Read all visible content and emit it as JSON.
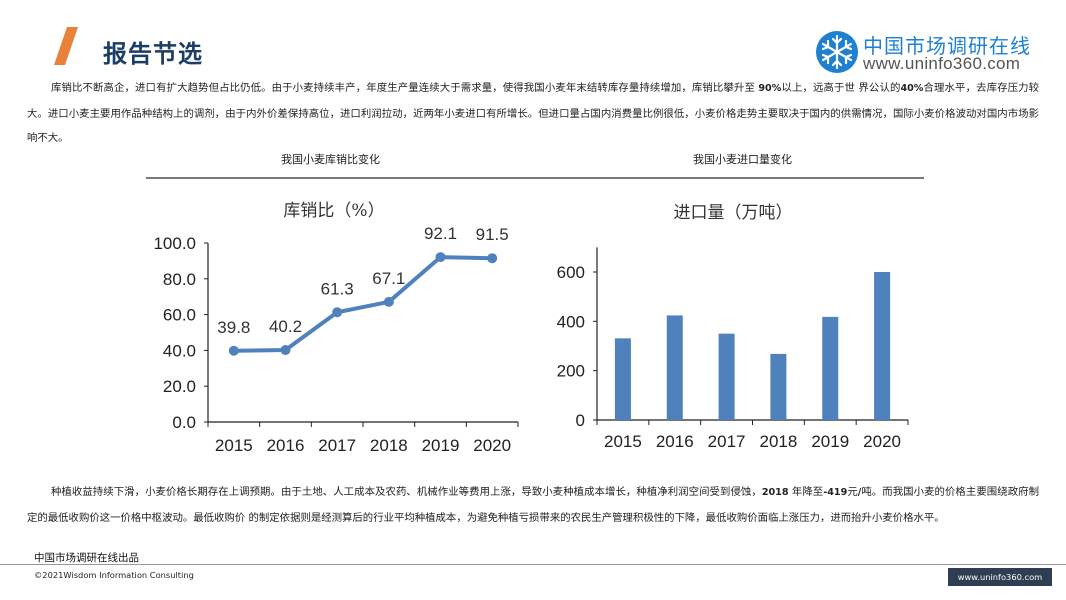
{
  "header": {
    "title": "报告节选",
    "accent_color": "#e8823a",
    "title_color": "#1c3d66"
  },
  "logo": {
    "icon": "snowflake-logo-icon",
    "name": "中国市场调研在线",
    "url": "www.uninfo360.com",
    "brand_color": "#1f7fd0"
  },
  "paragraph1": {
    "parts": [
      {
        "text": "库销比不断高企，进口有扩大趋势但占比仍低。由于小麦持续丰产，年度生产量连续大于需求量，使得我国小麦年末结转库存量持续增加，库销比攀升至 ",
        "bold": false
      },
      {
        "text": "90%",
        "bold": true
      },
      {
        "text": "以上，远高于世 界公认的",
        "bold": false
      },
      {
        "text": "40%",
        "bold": true
      },
      {
        "text": "合理水平，去库存压力较大。进口小麦主要用作品种结构上的调剂，由于内外价差保持高位，进口利润拉动，近两年小麦进口有所增长。但进口量占国内消费量比例很低，小麦价格走势主要取决于国内的供需情况，国际小麦价格波动对国内市场影响不大。",
        "bold": false
      }
    ]
  },
  "paragraph2": {
    "parts": [
      {
        "text": "种植收益持续下滑，小麦价格长期存在上调预期。由于土地、人工成本及农药、机械作业等费用上涨，导致小麦种植成本增长，种植净利润空间受到侵蚀，",
        "bold": false
      },
      {
        "text": "2018",
        "bold": true
      },
      {
        "text": " 年降至",
        "bold": false
      },
      {
        "text": "-419",
        "bold": true
      },
      {
        "text": "元",
        "bold": false
      },
      {
        "text": "/",
        "bold": true
      },
      {
        "text": "吨。而我国小麦的价格主要围绕政府制定的最低收购价这一价格中枢波动。最低收购价 的制定依据则是经测算后的行业平均种植成本，为避免种植亏损带来的农民生产管理积极性的下降，最低收购价面临上涨压力，进而抬升小麦价格水平。",
        "bold": false
      }
    ]
  },
  "chart_data": [
    {
      "type": "line",
      "caption": "我国小麦库销比变化",
      "title": "库销比（%）",
      "xlabel": "",
      "ylabel": "",
      "categories": [
        "2015",
        "2016",
        "2017",
        "2018",
        "2019",
        "2020"
      ],
      "values": [
        39.8,
        40.2,
        61.3,
        67.1,
        92.1,
        91.5
      ],
      "data_labels": [
        "39.8",
        "40.2",
        "61.3",
        "67.1",
        "92.1",
        "91.5"
      ],
      "yticks": [
        "0.0",
        "20.0",
        "40.0",
        "60.0",
        "80.0",
        "100.0"
      ],
      "ylim": [
        0,
        100
      ],
      "grid": false,
      "legend": "none",
      "color": "#4f81bd"
    },
    {
      "type": "bar",
      "caption": "我国小麦进口量变化",
      "title": "进口量（万吨）",
      "xlabel": "",
      "ylabel": "",
      "categories": [
        "2015",
        "2016",
        "2017",
        "2018",
        "2019",
        "2020"
      ],
      "values": [
        331,
        424,
        350,
        268,
        418,
        600
      ],
      "yticks": [
        "0",
        "200",
        "400",
        "600"
      ],
      "ylim": [
        0,
        700
      ],
      "grid": false,
      "legend": "none",
      "color": "#4f81bd"
    }
  ],
  "footer": {
    "brand": "中国市场调研在线出品",
    "copyright": "©2021Wisdom Information Consulting",
    "url": "www.uninfo360.com"
  }
}
